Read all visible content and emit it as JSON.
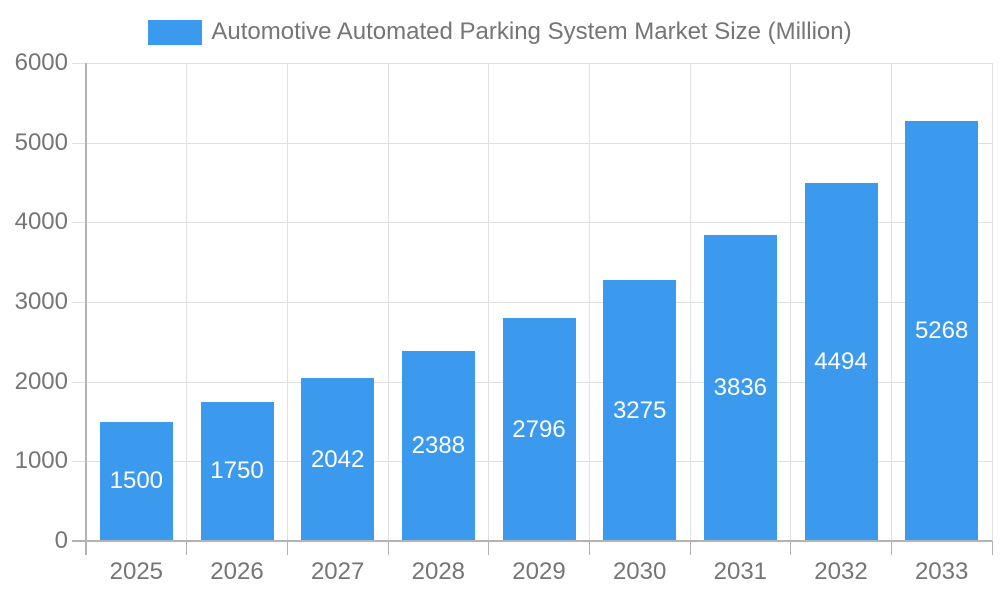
{
  "chart_data": {
    "type": "bar",
    "title": "Automotive Automated Parking System Market Size (Million)",
    "categories": [
      "2025",
      "2026",
      "2027",
      "2028",
      "2029",
      "2030",
      "2031",
      "2032",
      "2033"
    ],
    "values": [
      1500,
      1750,
      2042,
      2388,
      2796,
      3275,
      3836,
      4494,
      5268
    ],
    "xlabel": "",
    "ylabel": "",
    "ylim": [
      0,
      6000
    ],
    "ytick_step": 1000,
    "grid": true,
    "legend_position": "top-center",
    "value_label_position": "inside-center",
    "colors": {
      "bar": "#3b99ee",
      "axis_text": "#757575",
      "title_text": "#757575",
      "value_label": "#ffffff",
      "gridline": "#e0e0e0",
      "axis_line": "#b3b3b3",
      "background": "#ffffff"
    }
  }
}
